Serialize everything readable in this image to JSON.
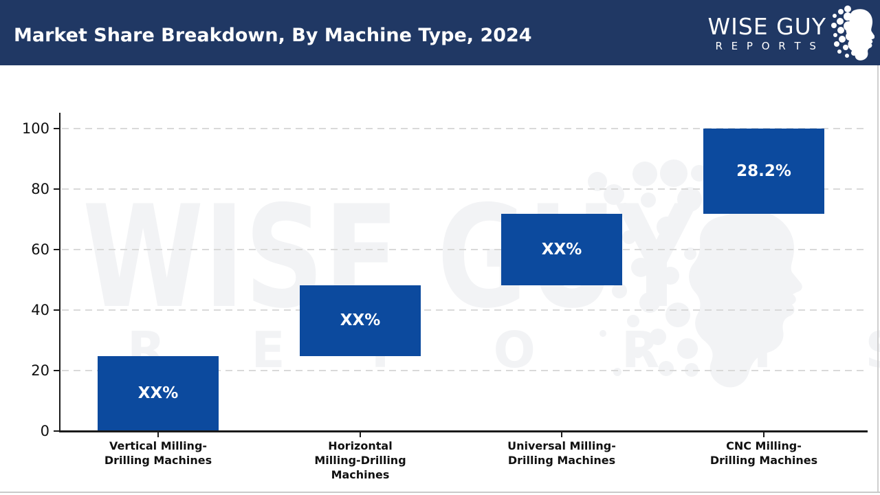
{
  "header": {
    "title": "Market Share Breakdown, By Machine Type, 2024",
    "bg_color": "#203864",
    "logo": {
      "name": "WISE GUY",
      "sub": "R E P O R T S"
    }
  },
  "watermark": {
    "text1": "WISE GUY",
    "text2": "R E P O R T S"
  },
  "chart_data": {
    "type": "bar",
    "subtype": "waterfall",
    "title": "Market Share Breakdown, By Machine Type, 2024",
    "categories": [
      [
        "Vertical Milling-",
        "Drilling Machines"
      ],
      [
        "Horizontal",
        "Milling-Drilling",
        "Machines"
      ],
      [
        "Universal Milling-",
        "Drilling Machines"
      ],
      [
        "CNC Milling-",
        "Drilling Machines"
      ]
    ],
    "segments": [
      {
        "category": "Vertical Milling-Drilling Machines",
        "start": 0,
        "end": 24.8,
        "label": "XX%"
      },
      {
        "category": "Horizontal Milling-Drilling Machines",
        "start": 24.8,
        "end": 48.2,
        "label": "XX%"
      },
      {
        "category": "Universal Milling-Drilling Machines",
        "start": 48.2,
        "end": 71.8,
        "label": "XX%"
      },
      {
        "category": "CNC Milling-Drilling Machines",
        "start": 71.8,
        "end": 100,
        "label": "28.2%"
      }
    ],
    "ylim": [
      0,
      100
    ],
    "yticks": [
      0,
      20,
      40,
      60,
      80,
      100
    ],
    "bar_color": "#0c4a9e",
    "bar_label_color": "#ffffff",
    "grid": "horizontal-dashed",
    "grid_color": "#d9d9d9",
    "legend": "none"
  }
}
